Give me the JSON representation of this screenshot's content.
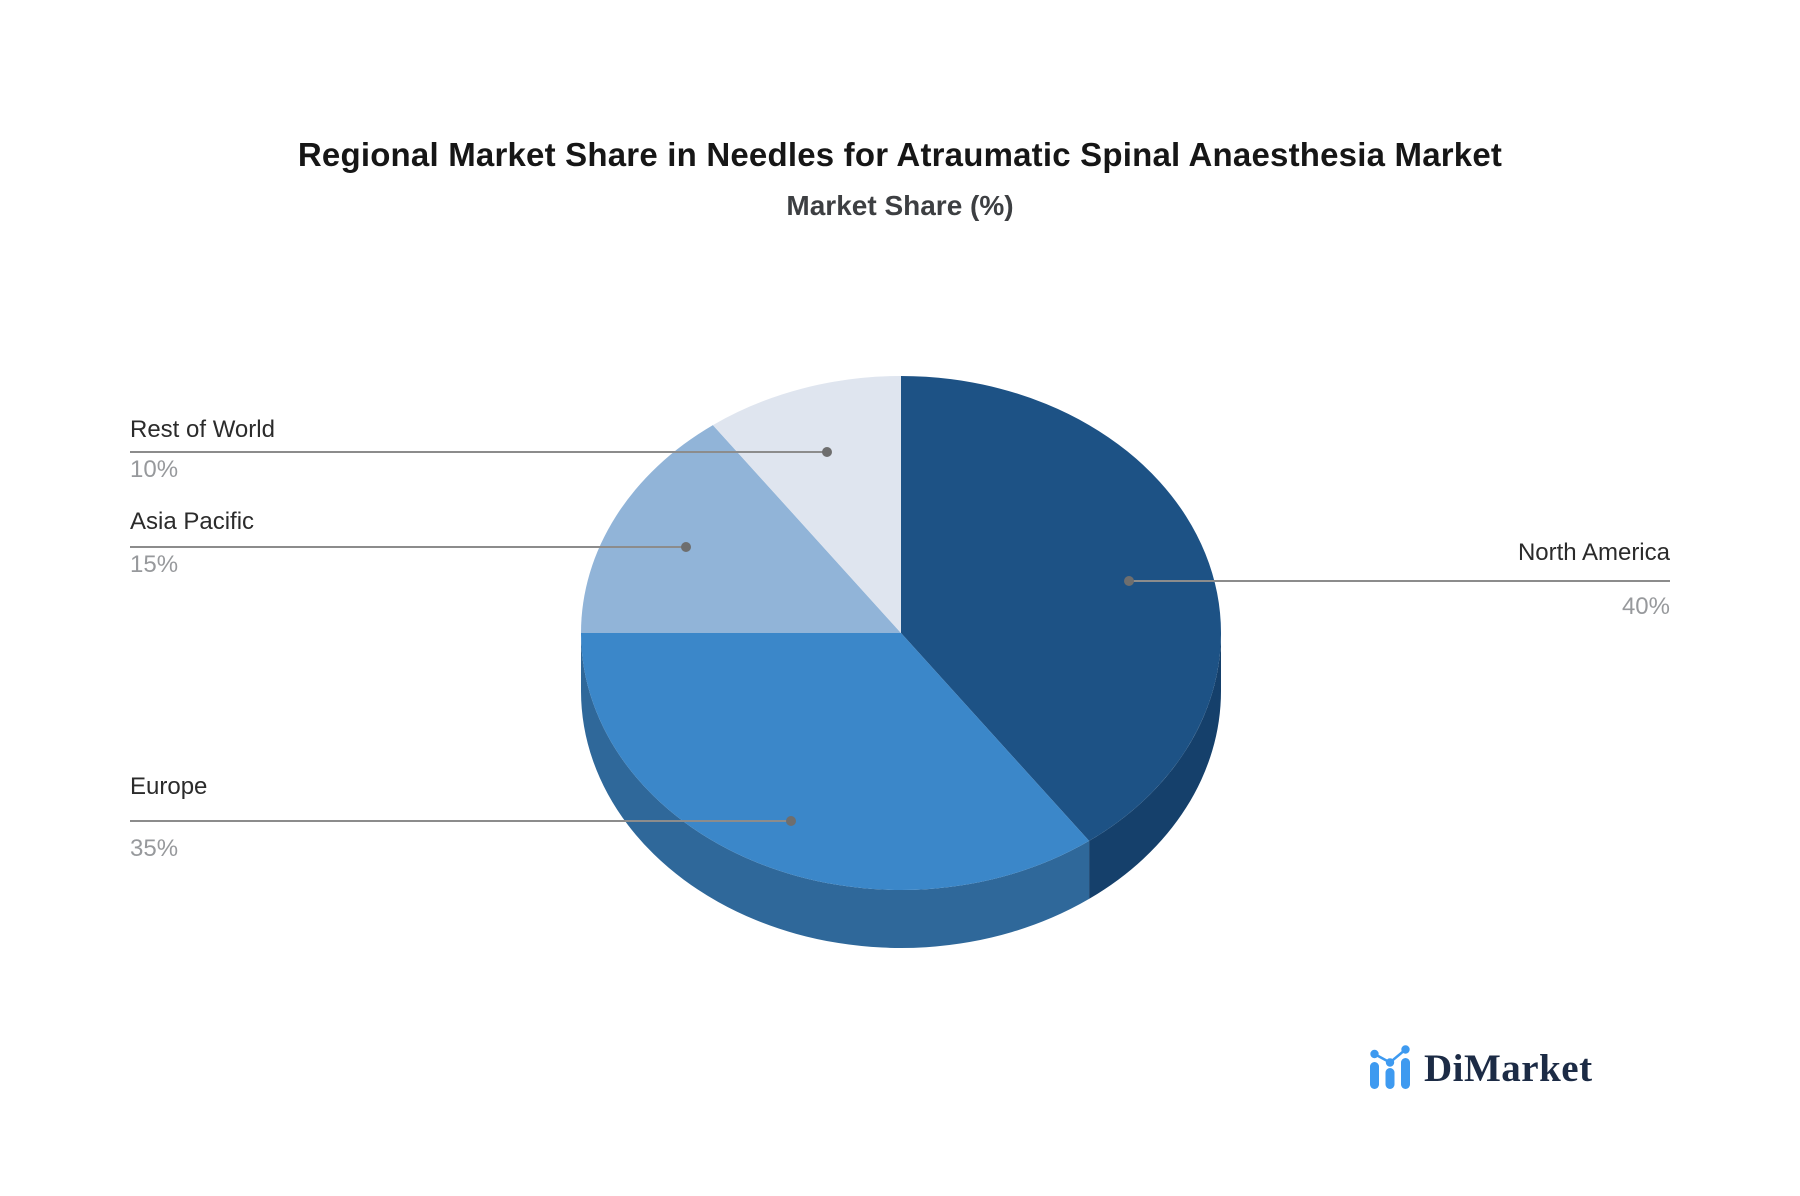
{
  "title": "Regional Market Share in Needles for Atraumatic Spinal Anaesthesia Market",
  "subtitle": "Market Share (%)",
  "brand": {
    "name": "DiMarket",
    "icon": "bar-line-chart-icon",
    "icon_color": "#3e9af0",
    "text_color": "#1c2b45"
  },
  "chart_data": {
    "type": "pie",
    "style": "3d-pie",
    "title": "Regional Market Share in Needles for Atraumatic Spinal Anaesthesia Market",
    "subtitle": "Market Share (%)",
    "unit": "%",
    "start_angle_deg": 90,
    "direction": "clockwise",
    "legend_position": "none",
    "labels_layout": "callout-leader-lines",
    "slices": [
      {
        "label": "North America",
        "value": 40,
        "display": "40%",
        "color": "#1d5285",
        "side_color": "#15406b",
        "label_side": "right"
      },
      {
        "label": "Europe",
        "value": 35,
        "display": "35%",
        "color": "#3b87c9",
        "side_color": "#2f689a",
        "label_side": "left"
      },
      {
        "label": "Asia Pacific",
        "value": 15,
        "display": "15%",
        "color": "#91b4d8",
        "side_color": "#7fa5cc",
        "label_side": "left"
      },
      {
        "label": "Rest of World",
        "value": 10,
        "display": "10%",
        "color": "#dfe5ef",
        "side_color": "#c3ccd9",
        "label_side": "left"
      }
    ],
    "leader_line_color": "#8c8c8c",
    "leader_dot_color": "#6e6e6e",
    "label_color": "#2b2b2b",
    "value_color": "#97999c"
  }
}
